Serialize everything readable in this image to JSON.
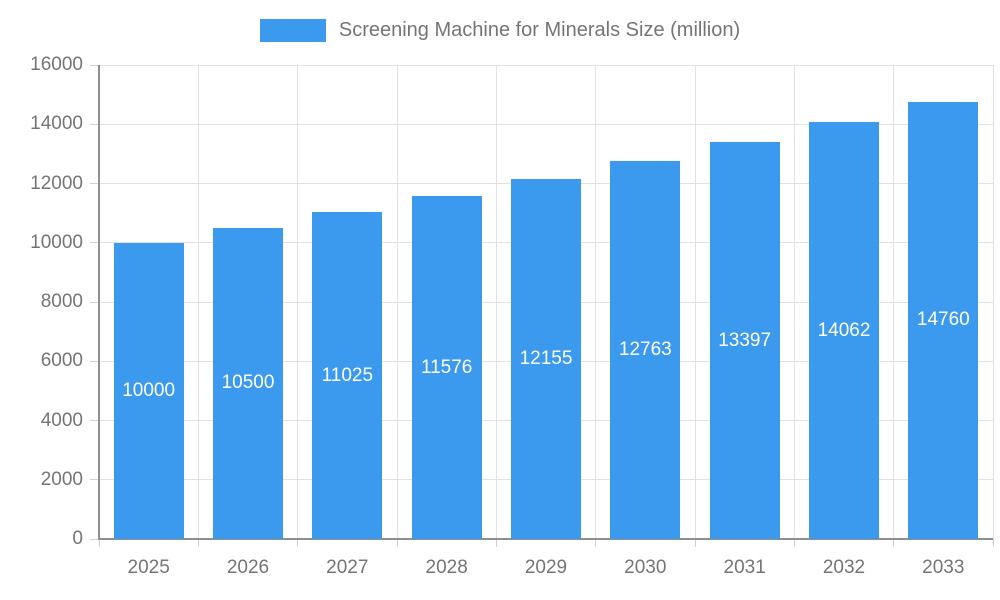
{
  "chart_data": {
    "type": "bar",
    "title": "Screening Machine for Minerals Size (million)",
    "legend": [
      "Screening Machine for Minerals Size (million)"
    ],
    "legend_position": "top",
    "categories": [
      "2025",
      "2026",
      "2027",
      "2028",
      "2029",
      "2030",
      "2031",
      "2032",
      "2033"
    ],
    "series": [
      {
        "name": "Screening Machine for Minerals Size (million)",
        "values": [
          10000,
          10500,
          11025,
          11576,
          12155,
          12763,
          13397,
          14062,
          14760
        ]
      }
    ],
    "value_labels": [
      "10000",
      "10500",
      "11025",
      "11576",
      "12155",
      "12763",
      "13397",
      "14062",
      "14760"
    ],
    "xlabel": "",
    "ylabel": "",
    "ylim": [
      0,
      16000
    ],
    "ytick_step": 2000,
    "ytick_labels": [
      "0",
      "2000",
      "4000",
      "6000",
      "8000",
      "10000",
      "12000",
      "14000",
      "16000"
    ],
    "grid": true,
    "colors": {
      "bar": "#3b99ee",
      "bar_value_text": "#ffffff",
      "grid": "#e2e2e2",
      "axis": "#8f8f8f",
      "tick": "#d0d0d0",
      "tick_text": "#757575",
      "legend_text": "#757575",
      "background": "#ffffff"
    }
  }
}
